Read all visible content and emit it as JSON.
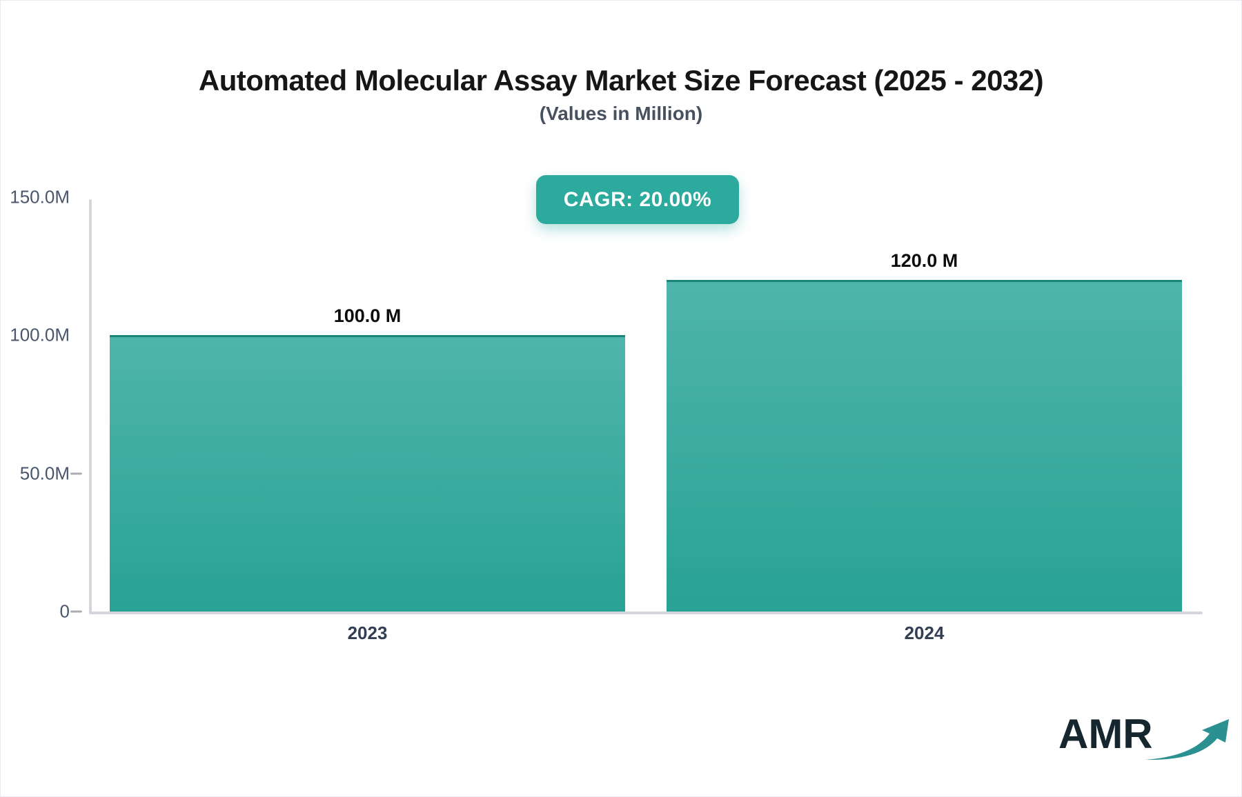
{
  "header": {
    "title": "Automated Molecular Assay Market Size Forecast (2025 - 2032)",
    "subtitle": "(Values in Million)"
  },
  "badge": {
    "label": "CAGR: 20.00%",
    "color": "#2caa9d"
  },
  "chart_data": {
    "type": "bar",
    "title": "Automated Molecular Assay Market Size Forecast (2025 - 2032)",
    "subtitle": "(Values in Million)",
    "cagr": "20.00%",
    "categories": [
      "2023",
      "2024"
    ],
    "values": [
      100.0,
      120.0
    ],
    "value_labels": [
      "100.0 M",
      "120.0 M"
    ],
    "unit": "Million",
    "ylim": [
      0,
      150
    ],
    "yticks": [
      {
        "label": "150.0M",
        "value": 150,
        "tick": false
      },
      {
        "label": "100.0M",
        "value": 100,
        "tick": false
      },
      {
        "label": "50.0M",
        "value": 50,
        "tick": true
      },
      {
        "label": "0",
        "value": 0,
        "tick": true
      }
    ],
    "grid": false,
    "legend": false,
    "bar_color_top": "#4fb5ac",
    "bar_color_bottom": "#29a295",
    "bar_border_color": "#18887d"
  },
  "logo": {
    "text": "AMR",
    "arrow_color": "#2b9090"
  }
}
